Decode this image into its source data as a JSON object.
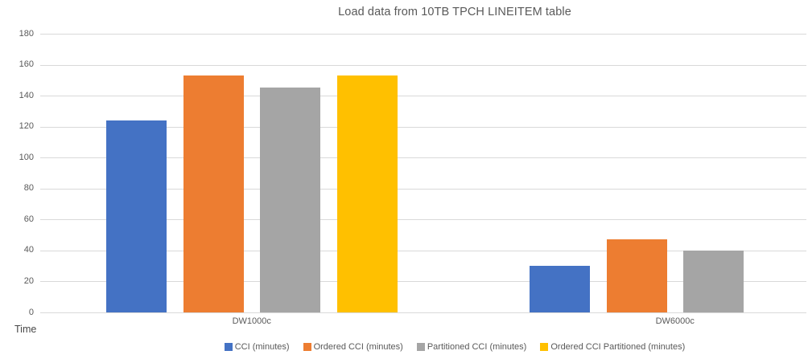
{
  "chart_data": {
    "type": "bar",
    "title": "Load data from 10TB TPCH LINEITEM table",
    "xlabel": "Time",
    "ylabel": "",
    "categories": [
      "DW1000c",
      "DW6000c"
    ],
    "series": [
      {
        "name": "CCI (minutes)",
        "color": "#4472C4",
        "values": [
          124,
          30
        ]
      },
      {
        "name": "Ordered CCI (minutes)",
        "color": "#ED7D31",
        "values": [
          153,
          47
        ]
      },
      {
        "name": "Partitioned CCI (minutes)",
        "color": "#A5A5A5",
        "values": [
          145,
          40
        ]
      },
      {
        "name": "Ordered CCI Partitioned (minutes)",
        "color": "#FFC000",
        "values": [
          153,
          null
        ]
      }
    ],
    "ylim": [
      0,
      180
    ],
    "ytick_step": 20,
    "grid": true,
    "gridline_color": "#D9D9D9",
    "text_color": "#595959",
    "legend_position": "bottom"
  }
}
